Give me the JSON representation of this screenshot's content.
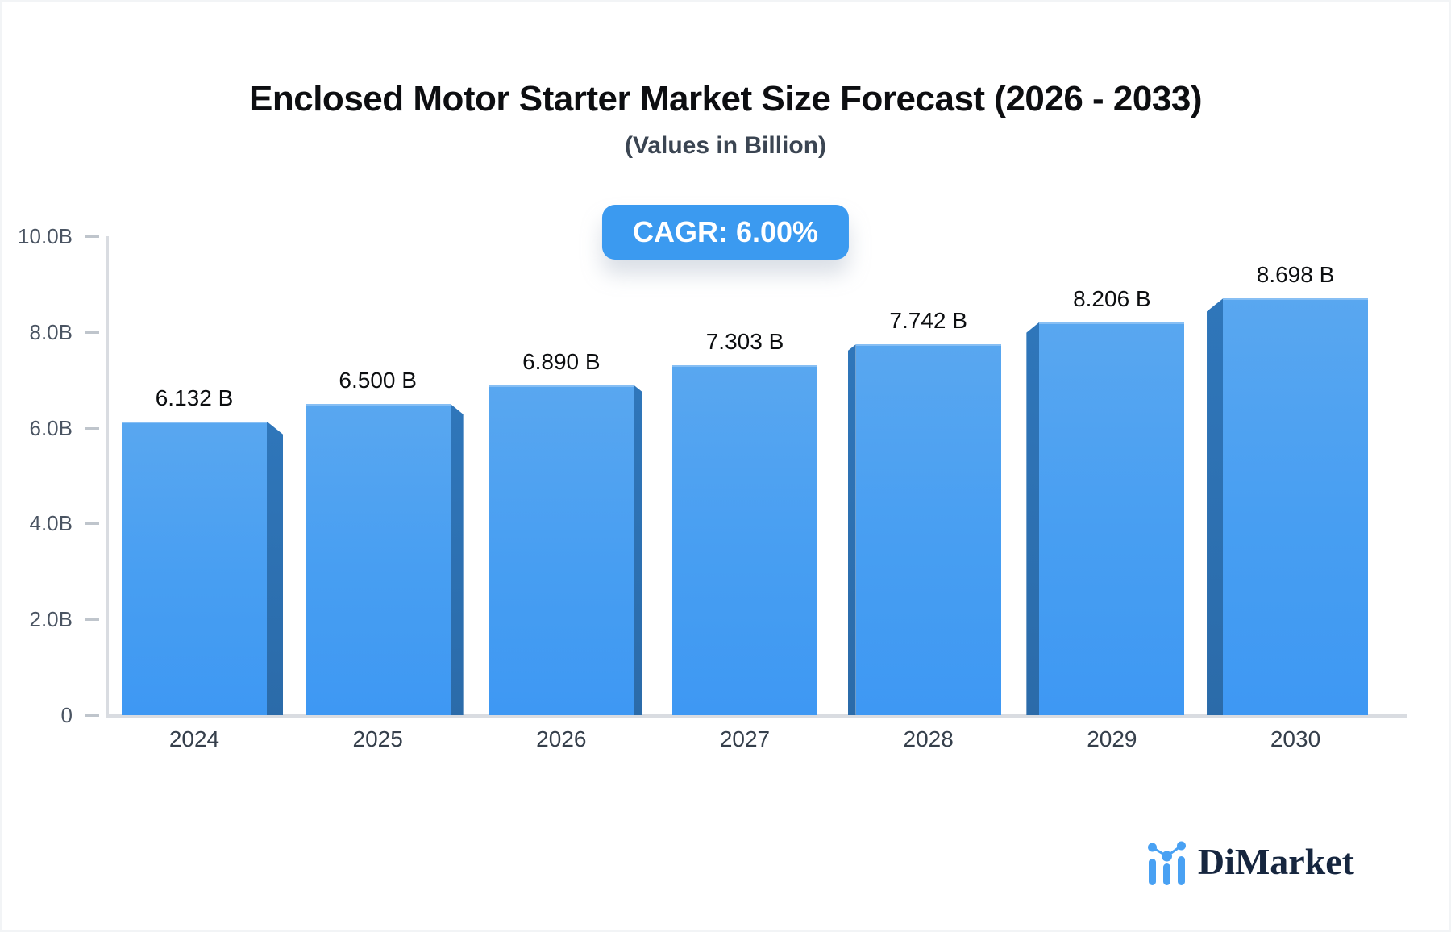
{
  "chart": {
    "title": "Enclosed Motor Starter Market Size Forecast (2026 - 2033)",
    "subtitle": "(Values in Billion)",
    "cagr_label": "CAGR: 6.00%"
  },
  "chart_data": {
    "type": "bar",
    "title": "Enclosed Motor Starter Market Size Forecast (2026 - 2033)",
    "subtitle": "(Values in Billion)",
    "cagr": "6.00%",
    "unit": "Billion",
    "categories": [
      "2024",
      "2025",
      "2026",
      "2027",
      "2028",
      "2029",
      "2030"
    ],
    "values": [
      6.132,
      6.5,
      6.89,
      7.303,
      7.742,
      8.206,
      8.698
    ],
    "value_labels": [
      "6.132 B",
      "6.500 B",
      "6.890 B",
      "7.303 B",
      "7.742 B",
      "8.206 B",
      "8.698 B"
    ],
    "y_ticks": [
      0,
      2,
      4,
      6,
      8,
      10
    ],
    "y_tick_labels": [
      "0",
      "2.0B",
      "4.0B",
      "6.0B",
      "8.0B",
      "10.0B"
    ],
    "ylim": [
      0,
      10
    ],
    "xlabel": "",
    "ylabel": "",
    "grid": "off",
    "legend": "none",
    "bar_color_top": "#59a7f0",
    "bar_color_bottom": "#3e98f3",
    "bar_side_color": "#2d72b4",
    "accent_color": "#3b9af0"
  },
  "brand": {
    "name": "DiMarket"
  }
}
